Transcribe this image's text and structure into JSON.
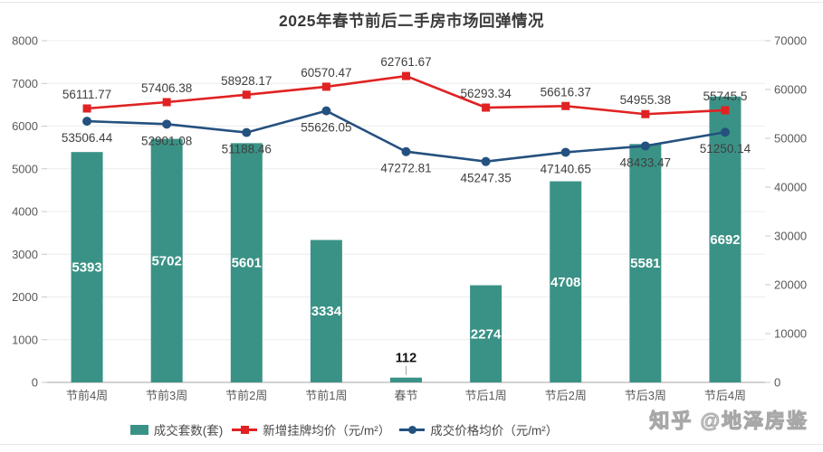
{
  "title": "2025年春节前后二手房市场回弹情况",
  "watermark": "知乎 @地泽房鉴",
  "colors": {
    "bar": "#3a9286",
    "listing": "#e02222",
    "price": "#24517f",
    "grid": "#ececec",
    "axis_line": "#d2d2d2",
    "tick": "#c9c9c9",
    "leader": "#a6a6a6"
  },
  "chart_data": {
    "type": "bar",
    "subtype": "combo-bar-line-dual-axis",
    "title": "2025年春节前后二手房市场回弹情况",
    "categories": [
      "节前4周",
      "节前3周",
      "节前2周",
      "节前1周",
      "春节",
      "节后1周",
      "节后2周",
      "节后3周",
      "节后4周"
    ],
    "series": [
      {
        "name": "成交套数(套)",
        "type": "bar",
        "axis": "left",
        "values": [
          5393,
          5702,
          5601,
          3334,
          112,
          2274,
          4708,
          5581,
          6692
        ],
        "labels": [
          "5393",
          "5702",
          "5601",
          "3334",
          "112",
          "2274",
          "4708",
          "5581",
          "6692"
        ]
      },
      {
        "name": "新增挂牌均价（元/m²）",
        "type": "line",
        "marker": "square",
        "axis": "right",
        "values": [
          56111.77,
          57406.38,
          58928.17,
          60570.47,
          62761.67,
          56293.34,
          56616.37,
          54955.38,
          55745.5
        ],
        "labels": [
          "56111.77",
          "57406.38",
          "58928.17",
          "60570.47",
          "62761.67",
          "56293.34",
          "56616.37",
          "54955.38",
          "55745.5"
        ]
      },
      {
        "name": "成交价格均价（元/m²）",
        "type": "line",
        "marker": "circle",
        "axis": "right",
        "values": [
          53506.44,
          52901.08,
          51188.46,
          55626.05,
          47272.81,
          45247.35,
          47140.65,
          48433.47,
          51250.14
        ],
        "labels": [
          "53506.44",
          "52901.08",
          "51188.46",
          "55626.05",
          "47272.81",
          "45247.35",
          "47140.65",
          "48433.47",
          "51250.14"
        ]
      }
    ],
    "left_axis": {
      "min": 0,
      "max": 8000,
      "step": 1000
    },
    "right_axis": {
      "min": 0,
      "max": 70000,
      "step": 10000
    },
    "grid": true,
    "legend_position": "bottom"
  }
}
